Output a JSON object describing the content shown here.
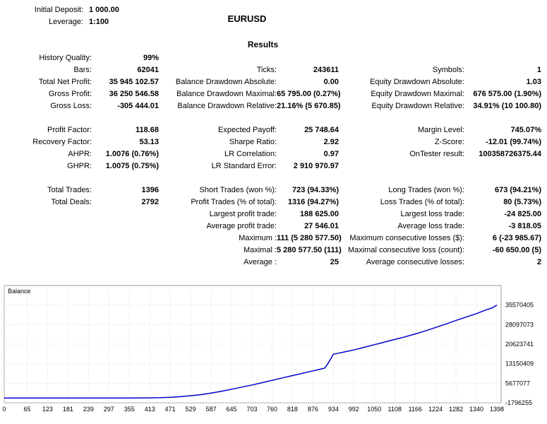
{
  "header": {
    "initial_deposit_label": "Initial Deposit:",
    "initial_deposit_value": "1 000.00",
    "leverage_label": "Leverage:",
    "leverage_value": "1:100",
    "symbol": "EURUSD",
    "results_title": "Results"
  },
  "stats": {
    "rows": [
      {
        "cells": [
          "History Quality:",
          "99%",
          "",
          "",
          "",
          ""
        ]
      },
      {
        "cells": [
          "Bars:",
          "62041",
          "Ticks:",
          "243611",
          "Symbols:",
          "1"
        ]
      },
      {
        "cells": [
          "Total Net Profit:",
          "35 945 102.57",
          "Balance Drawdown Absolute:",
          "0.00",
          "Equity Drawdown Absolute:",
          "1.03"
        ]
      },
      {
        "cells": [
          "Gross Profit:",
          "36 250 546.58",
          "Balance Drawdown Maximal:",
          "65 795.00 (0.27%)",
          "Equity Drawdown Maximal:",
          "676 575.00 (1.90%)"
        ]
      },
      {
        "cells": [
          "Gross Loss:",
          "-305 444.01",
          "Balance Drawdown Relative:",
          "21.16% (5 670.85)",
          "Equity Drawdown Relative:",
          "34.91% (10 100.80)"
        ]
      },
      {
        "spacer": true
      },
      {
        "cells": [
          "Profit Factor:",
          "118.68",
          "Expected Payoff:",
          "25 748.64",
          "Margin Level:",
          "745.07%"
        ]
      },
      {
        "cells": [
          "Recovery Factor:",
          "53.13",
          "Sharpe Ratio:",
          "2.92",
          "Z-Score:",
          "-12.01 (99.74%)"
        ]
      },
      {
        "cells": [
          "AHPR:",
          "1.0076 (0.76%)",
          "LR Correlation:",
          "0.97",
          "OnTester result:",
          "100358726375.44"
        ]
      },
      {
        "cells": [
          "GHPR:",
          "1.0075 (0.75%)",
          "LR Standard Error:",
          "2 910 970.97",
          "",
          ""
        ]
      },
      {
        "spacer": true
      },
      {
        "cells": [
          "Total Trades:",
          "1396",
          "Short Trades (won %):",
          "723 (94.33%)",
          "Long Trades (won %):",
          "673 (94.21%)"
        ]
      },
      {
        "cells": [
          "Total Deals:",
          "2792",
          "Profit Trades (% of total):",
          "1316 (94.27%)",
          "Loss Trades (% of total):",
          "80 (5.73%)"
        ]
      },
      {
        "cells": [
          "",
          "",
          "Largest profit trade:",
          "188 625.00",
          "Largest loss trade:",
          "-24 825.00"
        ]
      },
      {
        "cells": [
          "",
          "",
          "Average profit trade:",
          "27 546.01",
          "Average loss trade:",
          "-3 818.05"
        ]
      },
      {
        "cells": [
          "",
          "",
          "Maximum :",
          "111 (5 280 577.50)",
          "Maximum consecutive losses ($):",
          "6 (-23 985.67)"
        ]
      },
      {
        "cells": [
          "",
          "",
          "Maximal :",
          "5 280 577.50 (111)",
          "Maximal consecutive loss (count):",
          "-60 650.00 (5)"
        ]
      },
      {
        "cells": [
          "",
          "",
          "Average :",
          "25",
          "Average consecutive losses:",
          "2"
        ]
      }
    ]
  },
  "chart_data": {
    "type": "line",
    "title": "Balance",
    "line_color": "#0000cc",
    "grid": true,
    "xlim": [
      0,
      1410
    ],
    "ylim": [
      -1796255,
      43043737
    ],
    "x_ticks": [
      0,
      65,
      123,
      181,
      239,
      297,
      355,
      413,
      471,
      529,
      587,
      645,
      703,
      760,
      818,
      876,
      934,
      992,
      1050,
      1108,
      1166,
      1224,
      1282,
      1340,
      1398
    ],
    "y_ticks": [
      35570405,
      28097073,
      20623741,
      13150409,
      5677077,
      -1796255
    ],
    "series": [
      {
        "name": "Balance",
        "x": [
          0,
          65,
          123,
          181,
          239,
          297,
          355,
          413,
          441,
          471,
          500,
          529,
          558,
          587,
          616,
          645,
          674,
          703,
          732,
          760,
          789,
          818,
          847,
          876,
          895,
          910,
          920,
          934,
          950,
          970,
          992,
          1021,
          1050,
          1079,
          1108,
          1137,
          1166,
          1195,
          1224,
          1253,
          1282,
          1311,
          1340,
          1369,
          1385,
          1398
        ],
        "y": [
          1000,
          1500,
          2500,
          4000,
          7000,
          12000,
          30000,
          90000,
          150000,
          300000,
          550000,
          900000,
          1300000,
          1900000,
          2600000,
          3400000,
          4200000,
          5000000,
          5900000,
          6800000,
          7700000,
          8600000,
          9500000,
          10400000,
          11000000,
          11500000,
          13500000,
          16800000,
          17200000,
          17800000,
          18400000,
          19400000,
          20400000,
          21400000,
          22400000,
          23400000,
          24500000,
          25700000,
          27000000,
          28300000,
          29700000,
          31000000,
          32300000,
          33800000,
          34500000,
          35570405
        ]
      }
    ]
  }
}
